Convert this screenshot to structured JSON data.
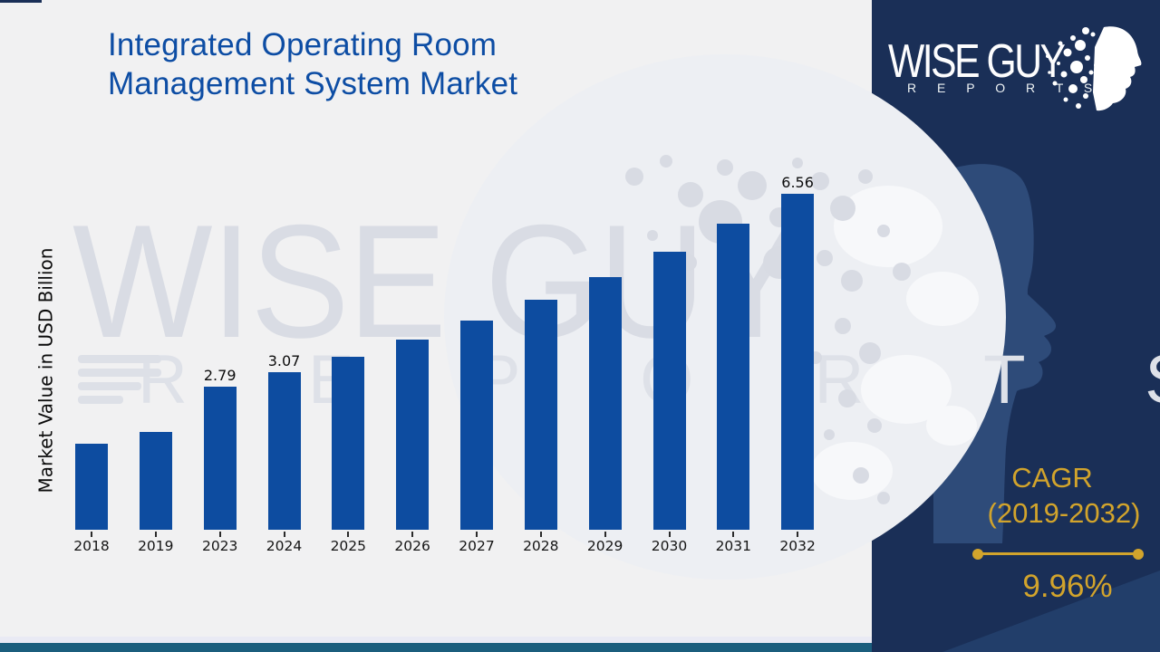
{
  "page": {
    "background": "#f1f1f2"
  },
  "title": {
    "line1": "Integrated Operating Room",
    "line2": "Management System Market",
    "full": "Integrated Operating Room Management System Market"
  },
  "y_axis": {
    "label": "Market Value in USD Billion"
  },
  "watermark": {
    "wordmark": "WISE GUY",
    "subtext": "R E P O R T S"
  },
  "brand": {
    "wordmark": "WISE GUY",
    "subtext": "R E P O R T S",
    "face_icon": "face-profile-dotted-icon"
  },
  "cagr": {
    "heading": "CAGR",
    "range": "(2019-2032)",
    "value": "9.96%"
  },
  "colors": {
    "bar": "#0d4ca0",
    "title": "#0d4da4",
    "panel_navy": "#1a2f57",
    "face_silhouette": "#2e4b79",
    "bottom_band": "#223e6a",
    "gold": "#d2a42c",
    "teal_strip": "#1b5e7d",
    "lavender_strip": "#e9eaf4",
    "watermark_gray": "#d9dce4",
    "ellipse_fill": "#edeff3",
    "dot_gray": "#d8dbe3",
    "background": "#f1f1f2"
  },
  "chart_data": {
    "type": "bar",
    "title": "Integrated Operating Room Management System Market",
    "xlabel": "",
    "ylabel": "Market Value in USD Billion",
    "categories": [
      "2018",
      "2019",
      "2023",
      "2024",
      "2025",
      "2026",
      "2027",
      "2028",
      "2029",
      "2030",
      "2031",
      "2032"
    ],
    "values": [
      1.68,
      1.91,
      2.79,
      3.07,
      3.38,
      3.71,
      4.08,
      4.49,
      4.94,
      5.43,
      5.97,
      6.56
    ],
    "point_labels": {
      "2023": "2.79",
      "2024": "3.07",
      "2032": "6.56"
    },
    "ylim": [
      0,
      7
    ],
    "grid": false,
    "legend": null,
    "bar_color": "#0d4ca0",
    "value_unit": "USD Billion"
  }
}
